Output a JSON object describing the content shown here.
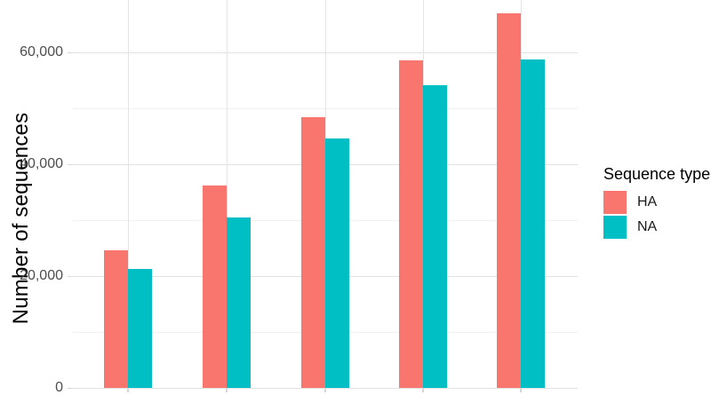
{
  "chart_data": {
    "type": "bar",
    "mode": "grouped",
    "title": "",
    "xlabel": "",
    "ylabel": "Number of sequences",
    "categories": [
      "",
      "",
      "",
      "",
      ""
    ],
    "series": [
      {
        "name": "HA",
        "color": "#F8766D",
        "values": [
          24600,
          36100,
          48400,
          58500,
          66900
        ]
      },
      {
        "name": "NA",
        "color": "#00BFC4",
        "values": [
          21300,
          30500,
          44600,
          54100,
          58700
        ]
      }
    ],
    "ylim": [
      0,
      69300
    ],
    "y_major_ticks": [
      {
        "value": 0,
        "label": "0"
      },
      {
        "value": 20000,
        "label": "20,000"
      },
      {
        "value": 40000,
        "label": "40,000"
      },
      {
        "value": 60000,
        "label": "60,000"
      }
    ],
    "y_minor_step": 10000,
    "grid": "on",
    "x_tick_labels_visible": false,
    "legend": {
      "position": "right",
      "title": "Sequence type",
      "entries": [
        {
          "label": "HA",
          "color": "#F8766D"
        },
        {
          "label": "NA",
          "color": "#00BFC4"
        }
      ]
    },
    "colors": {
      "background": "#ffffff",
      "grid_major": "#e2e2e2",
      "grid_minor": "#f0f0f0",
      "tick_label": "#4d4d4d",
      "axis_title": "#000000"
    }
  }
}
